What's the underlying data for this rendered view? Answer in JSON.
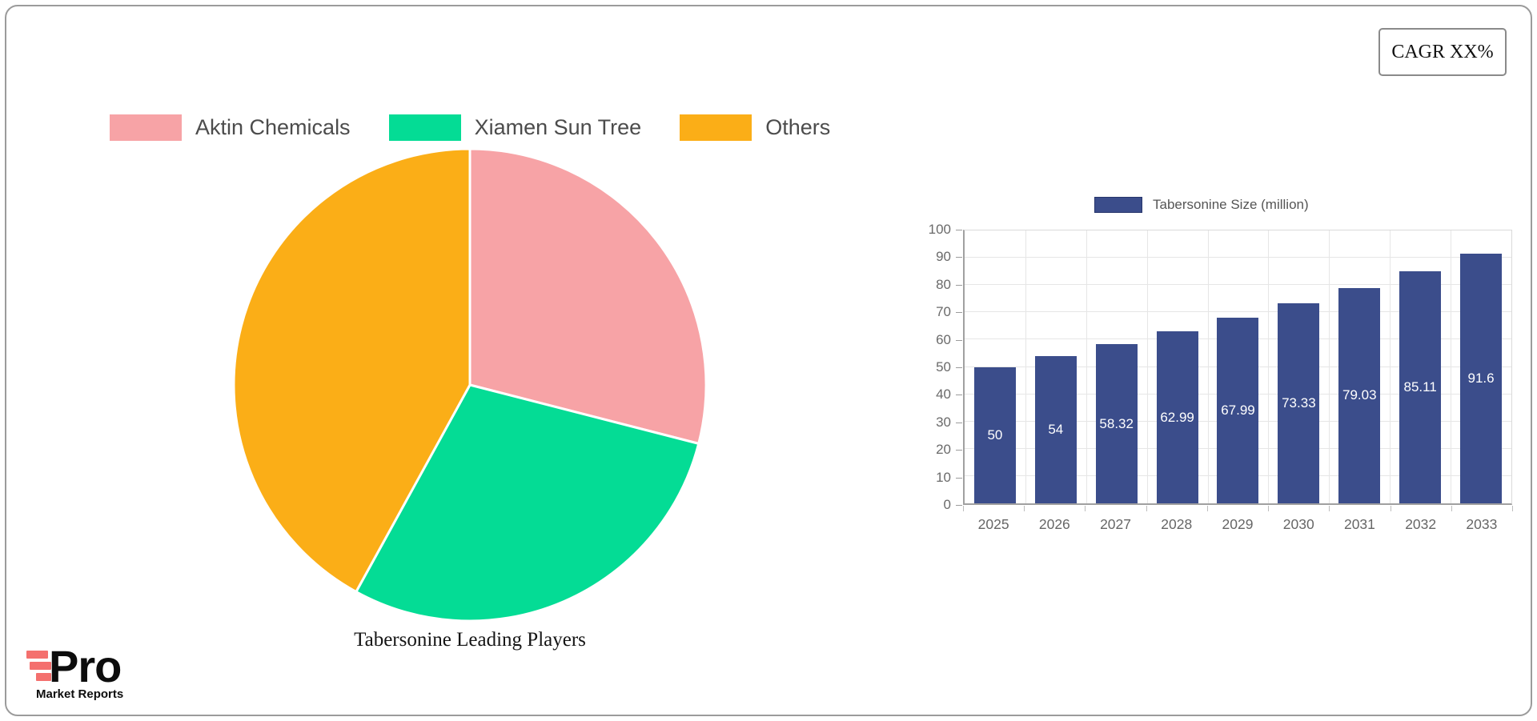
{
  "cagr_box": {
    "label": "CAGR XX%"
  },
  "logo": {
    "name": "Pro",
    "tagline": "Market Reports",
    "bar_color": "#F4706E"
  },
  "chart_data": [
    {
      "type": "pie",
      "title": "Tabersonine Leading Players",
      "labels": [
        "Aktin Chemicals",
        "Xiamen Sun Tree",
        "Others"
      ],
      "values": [
        29,
        29,
        42
      ],
      "colors": [
        "#F7A3A6",
        "#04DC95",
        "#FBAE17"
      ],
      "start_angle_deg": 0,
      "direction": "clockwise",
      "legend_position": "top"
    },
    {
      "type": "bar",
      "legend": [
        "Tabersonine Size (million)"
      ],
      "categories": [
        "2025",
        "2026",
        "2027",
        "2028",
        "2029",
        "2030",
        "2031",
        "2032",
        "2033"
      ],
      "values": [
        50,
        54,
        58.32,
        62.99,
        67.99,
        73.33,
        79.03,
        85.11,
        91.6
      ],
      "colors": [
        "#3B4D8B"
      ],
      "ylim": [
        0,
        100
      ],
      "y_ticks": [
        0,
        10,
        20,
        30,
        40,
        50,
        60,
        70,
        80,
        90,
        100
      ],
      "grid": true,
      "legend_position": "top"
    }
  ]
}
